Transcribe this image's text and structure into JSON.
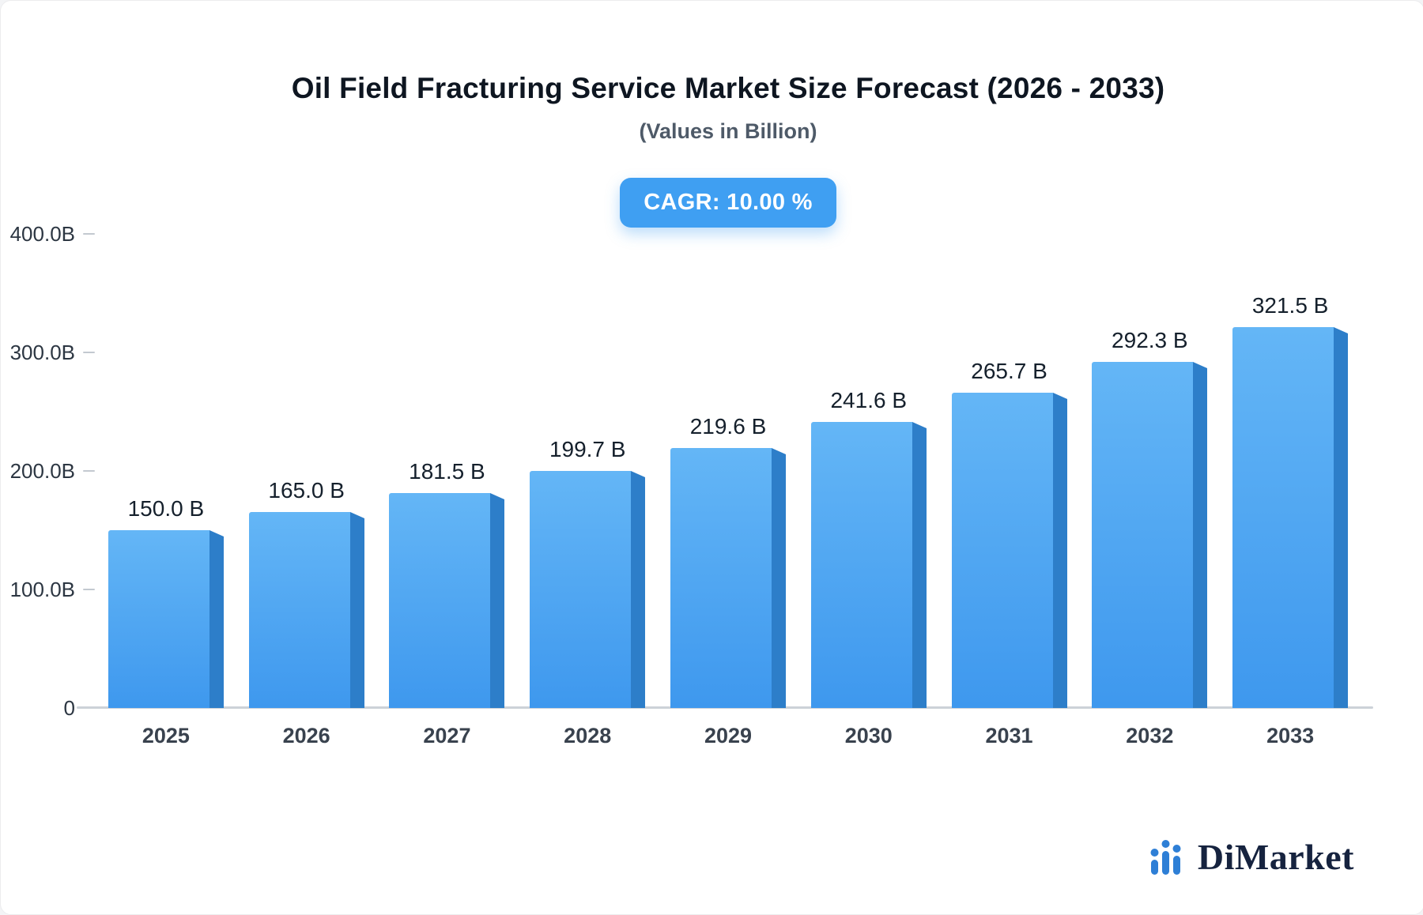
{
  "header": {
    "title": "Oil Field Fracturing Service Market Size Forecast (2026 - 2033)",
    "subtitle": "(Values in Billion)",
    "cagr_badge": "CAGR: 10.00 %"
  },
  "brand": {
    "name": "DiMarket"
  },
  "theme": {
    "accent": "#3f9ff2",
    "bar_face_top": "#64b6f6",
    "bar_face_bottom": "#3e98ee",
    "bar_side": "#2d7ec9",
    "logo_blue": "#2e7fd6"
  },
  "chart_data": {
    "type": "bar",
    "title": "Oil Field Fracturing Service Market Size Forecast (2026 - 2033)",
    "subtitle": "(Values in Billion)",
    "cagr_label": "CAGR: 10.00 %",
    "unit": "Billion",
    "categories": [
      "2025",
      "2026",
      "2027",
      "2028",
      "2029",
      "2030",
      "2031",
      "2032",
      "2033"
    ],
    "values": [
      150.0,
      165.0,
      181.5,
      199.7,
      219.6,
      241.6,
      265.7,
      292.3,
      321.5
    ],
    "value_labels": [
      "150.0 B",
      "165.0 B",
      "181.5 B",
      "199.7 B",
      "219.6 B",
      "241.6 B",
      "265.7 B",
      "292.3 B",
      "321.5 B"
    ],
    "xlabel": "",
    "ylabel": "",
    "ylim": [
      0,
      400
    ],
    "yticks": [
      {
        "value": 0,
        "label": "0"
      },
      {
        "value": 100,
        "label": "100.0B"
      },
      {
        "value": 200,
        "label": "200.0B"
      },
      {
        "value": 300,
        "label": "300.0B"
      },
      {
        "value": 400,
        "label": "400.0B"
      }
    ],
    "grid": false,
    "legend": "none"
  }
}
